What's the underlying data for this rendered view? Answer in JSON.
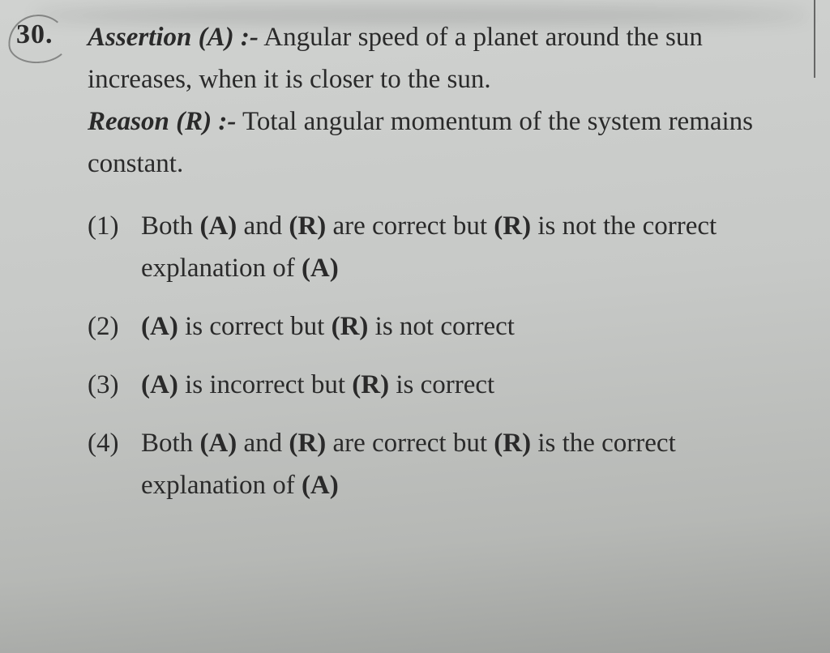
{
  "question": {
    "number": "30.",
    "assertion_label": "Assertion (A) :-",
    "assertion_text": " Angular speed of a planet around the sun increases, when it is closer to the sun.",
    "reason_label": "Reason (R) :-",
    "reason_text": " Total angular momentum of the system remains constant."
  },
  "options": [
    {
      "num": "(1)",
      "pre": "Both ",
      "bA": "(A)",
      "mid1": " and ",
      "bR": "(R)",
      "mid2": " are correct but ",
      "bR2": "(R)",
      "mid3": " is not the correct explanation of ",
      "bA2": "(A)",
      "tail": ""
    },
    {
      "num": "(2)",
      "pre": "",
      "bA": "(A)",
      "mid1": " is correct but ",
      "bR": "(R)",
      "mid2": " is not correct",
      "bR2": "",
      "mid3": "",
      "bA2": "",
      "tail": ""
    },
    {
      "num": "(3)",
      "pre": "",
      "bA": "(A)",
      "mid1": " is incorrect but ",
      "bR": "(R)",
      "mid2": " is correct",
      "bR2": "",
      "mid3": "",
      "bA2": "",
      "tail": ""
    },
    {
      "num": "(4)",
      "pre": "Both ",
      "bA": "(A)",
      "mid1": " and ",
      "bR": "(R)",
      "mid2": " are correct but ",
      "bR2": "(R)",
      "mid3": " is the correct explanation of ",
      "bA2": "(A)",
      "tail": ""
    }
  ],
  "style": {
    "text_color": "#2a2a2a",
    "bg_gradient_top": "#d0d2d0",
    "bg_gradient_bottom": "#9ea09d",
    "font_size_pt": 25,
    "qnum_font_size_pt": 26,
    "line_height": 1.58
  }
}
